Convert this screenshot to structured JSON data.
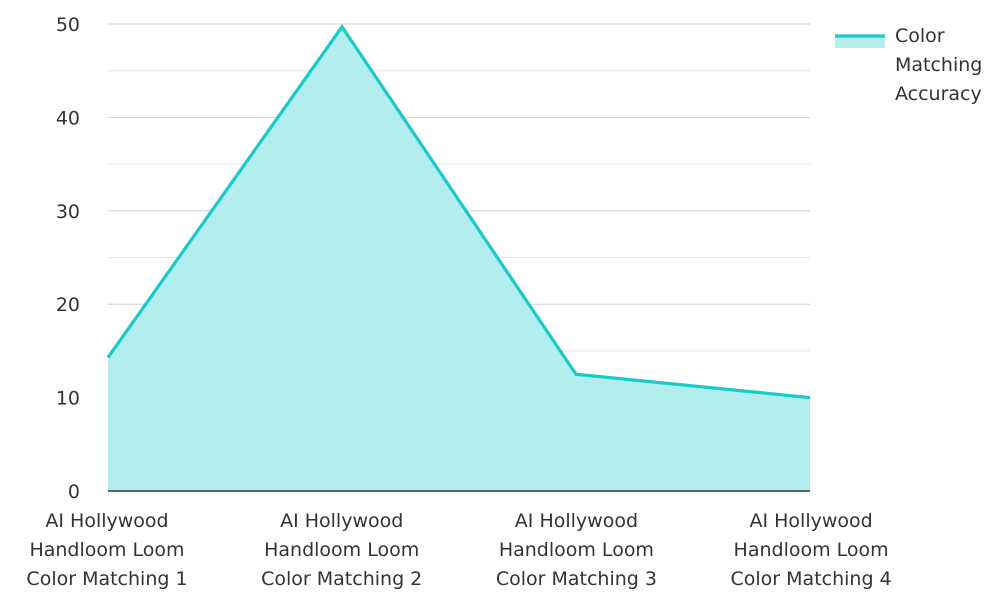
{
  "chart_data": {
    "type": "area",
    "title": "",
    "xlabel": "",
    "ylabel": "",
    "categories": [
      [
        "AI Hollywood",
        "Handloom Loom",
        "Color Matching 1"
      ],
      [
        "AI Hollywood",
        "Handloom Loom",
        "Color Matching 2"
      ],
      [
        "AI Hollywood",
        "Handloom Loom",
        "Color Matching 3"
      ],
      [
        "AI Hollywood",
        "Handloom Loom",
        "Color Matching 4"
      ]
    ],
    "series": [
      {
        "name": [
          "Color",
          "Matching",
          "Accuracy"
        ],
        "values": [
          14.3,
          49.7,
          12.5,
          10.0
        ],
        "color": "#1ac9c9",
        "fill": "#b2eeee"
      }
    ],
    "ylim": [
      0,
      50
    ],
    "yticks": [
      0,
      10,
      20,
      30,
      40,
      50
    ],
    "grid": true,
    "legend": "top-right"
  }
}
